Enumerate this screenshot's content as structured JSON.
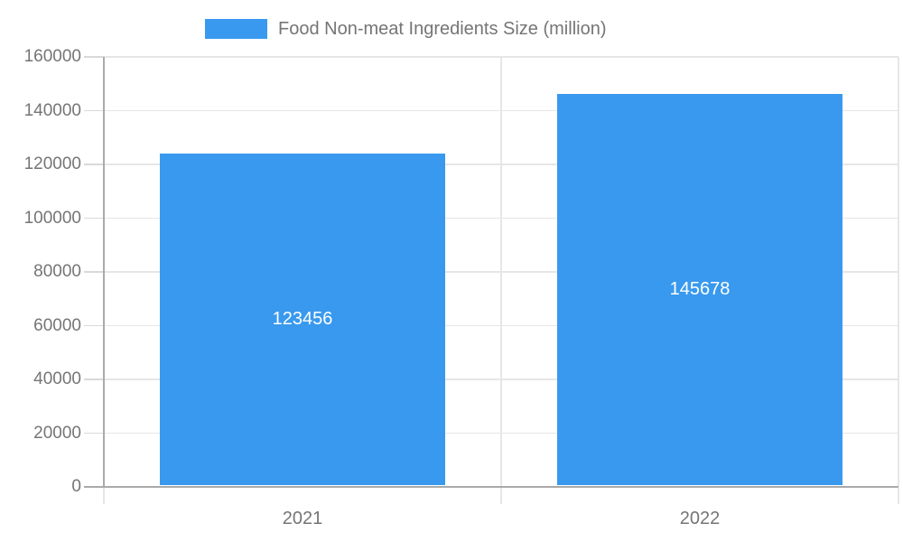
{
  "chart_data": {
    "type": "bar",
    "title": "Food Non-meat Ingredients Size (million)",
    "categories": [
      "2021",
      "2022"
    ],
    "series": [
      {
        "name": "Food Non-meat Ingredients Size (million)",
        "values": [
          123456,
          145678
        ]
      }
    ],
    "data_labels": [
      "123456",
      "145678"
    ],
    "legend": {
      "position": "top-center",
      "entries": [
        {
          "label": "Food Non-meat Ingredients Size (million)",
          "color": "#3999EE"
        }
      ]
    },
    "xlabel": "",
    "ylabel": "",
    "ylim": [
      0,
      160000
    ],
    "yticks": [
      0,
      20000,
      40000,
      60000,
      80000,
      100000,
      120000,
      140000,
      160000
    ],
    "ytick_labels": [
      "0",
      "20000",
      "40000",
      "60000",
      "80000",
      "100000",
      "120000",
      "140000",
      "160000"
    ],
    "grid": true
  },
  "colors": {
    "bar": "#3999EE",
    "grid": "#E6E6E6",
    "tick": "#D9D9D9",
    "axis": "#AAAAAA",
    "text": "#757575",
    "data_label": "#FFFFFF",
    "background": "#FFFFFF"
  }
}
